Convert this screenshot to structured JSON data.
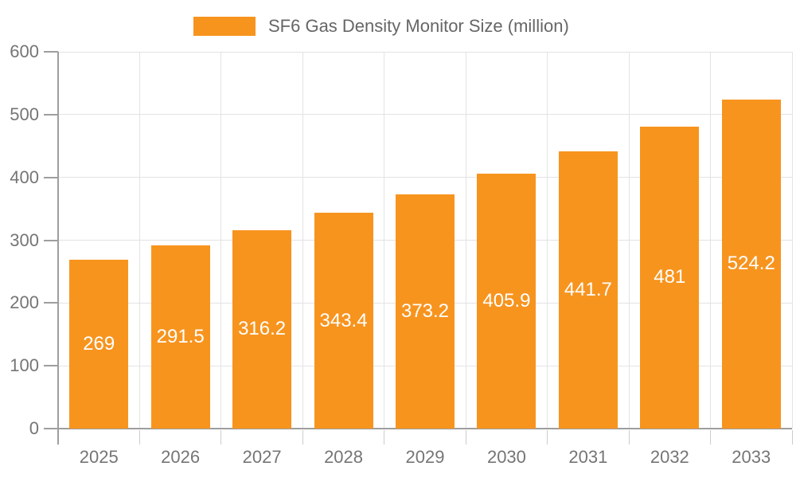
{
  "legend": {
    "label": "SF6 Gas Density Monitor Size (million)"
  },
  "colors": {
    "bar": "#f7941e",
    "grid": "#e3e3e3",
    "axis": "#9e9e9e",
    "x_tick": "#cccccc",
    "tick_label": "#757575",
    "legend_text": "#666666",
    "value_label": "#ffffff",
    "background": "#ffffff"
  },
  "chart_data": {
    "type": "bar",
    "title": "SF6 Gas Density Monitor Size (million)",
    "categories": [
      "2025",
      "2026",
      "2027",
      "2028",
      "2029",
      "2030",
      "2031",
      "2032",
      "2033"
    ],
    "series": [
      {
        "name": "SF6 Gas Density Monitor Size (million)",
        "values": [
          269,
          291.5,
          316.2,
          343.4,
          373.2,
          405.9,
          441.7,
          481,
          524.2
        ]
      }
    ],
    "xlabel": "",
    "ylabel": "",
    "ylim": [
      0,
      600
    ],
    "yticks": [
      0,
      100,
      200,
      300,
      400,
      500,
      600
    ],
    "grid": true,
    "legend_position": "top",
    "value_labels": "inside-center"
  }
}
